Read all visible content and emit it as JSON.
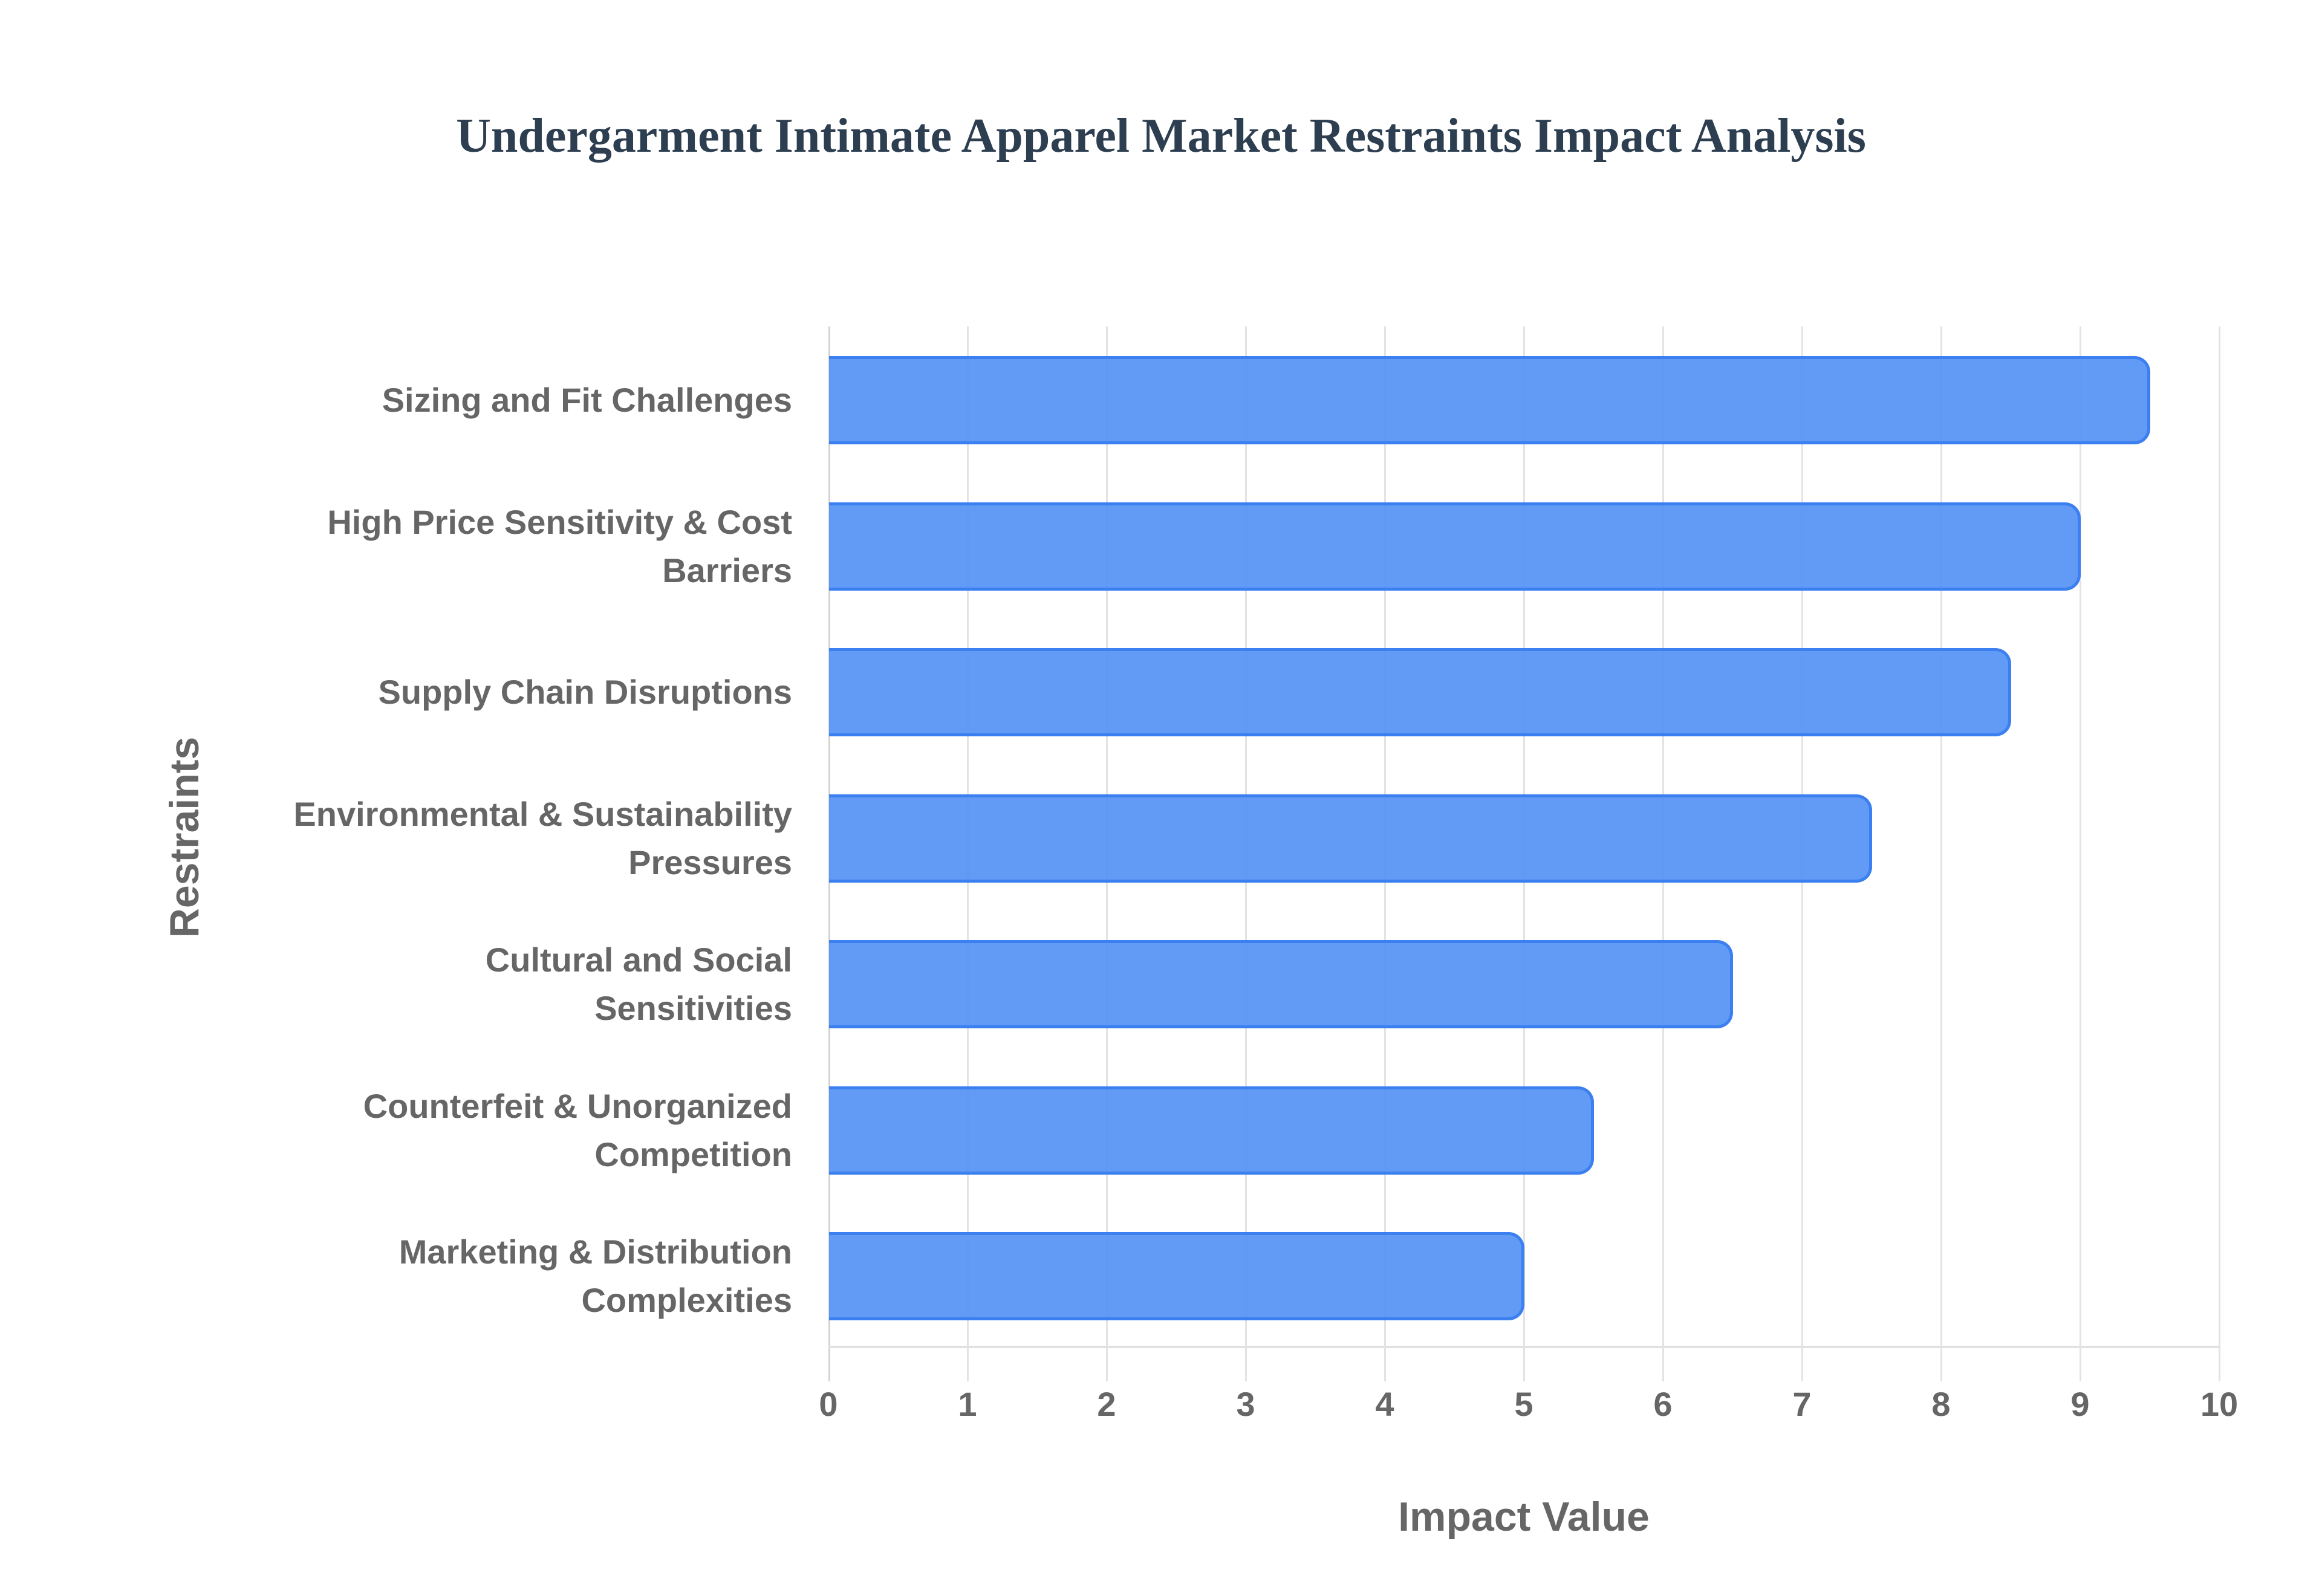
{
  "title": "Undergarment Intimate Apparel Market Restraints Impact Analysis",
  "colors": {
    "bar_fill": "#5f98f4",
    "bar_border": "#3b7ff0",
    "title": "#2c3e50",
    "axis_text": "#666666",
    "grid": "#e3e3e3"
  },
  "axes": {
    "x_label": "Impact Value",
    "y_label": "Restraints",
    "x_ticks": [
      "0",
      "1",
      "2",
      "3",
      "4",
      "5",
      "6",
      "7",
      "8",
      "9",
      "10"
    ]
  },
  "chart_data": {
    "type": "bar",
    "orientation": "horizontal",
    "title": "Undergarment Intimate Apparel Market Restraints Impact Analysis",
    "xlabel": "Impact Value",
    "ylabel": "Restraints",
    "xlim": [
      0,
      10
    ],
    "grid": true,
    "legend": null,
    "categories": [
      "Sizing and Fit Challenges",
      "High Price Sensitivity & Cost Barriers",
      "Supply Chain Disruptions",
      "Environmental & Sustainability Pressures",
      "Cultural and Social Sensitivities",
      "Counterfeit & Unorganized Competition",
      "Marketing & Distribution Complexities"
    ],
    "values": [
      9.5,
      9.0,
      8.5,
      7.5,
      6.5,
      5.5,
      5.0
    ]
  },
  "bars": [
    {
      "line1": "Sizing and Fit Challenges",
      "line2": "",
      "value": 9.5
    },
    {
      "line1": "High Price Sensitivity & Cost",
      "line2": "Barriers",
      "value": 9.0
    },
    {
      "line1": "Supply Chain Disruptions",
      "line2": "",
      "value": 8.5
    },
    {
      "line1": "Environmental & Sustainability",
      "line2": "Pressures",
      "value": 7.5
    },
    {
      "line1": "Cultural and Social",
      "line2": "Sensitivities",
      "value": 6.5
    },
    {
      "line1": "Counterfeit & Unorganized",
      "line2": "Competition",
      "value": 5.5
    },
    {
      "line1": "Marketing & Distribution",
      "line2": "Complexities",
      "value": 5.0
    }
  ]
}
